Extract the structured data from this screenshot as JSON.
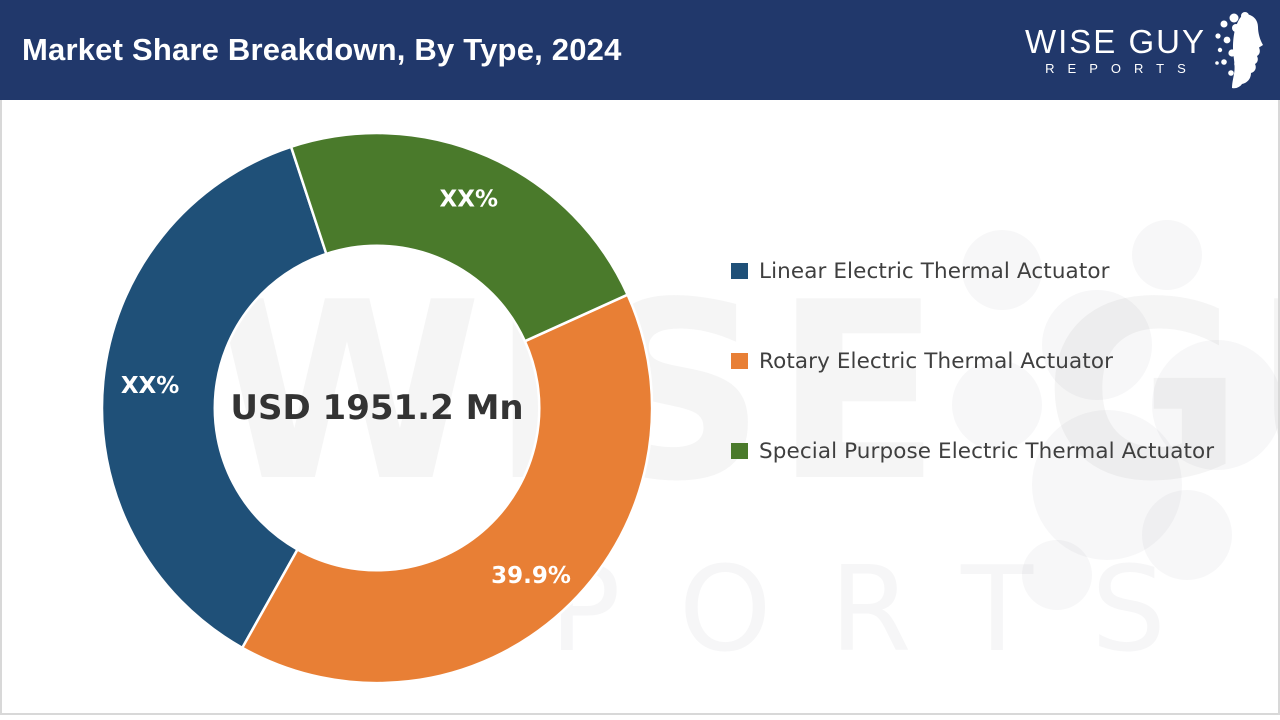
{
  "header": {
    "title": "Market Share Breakdown, By Type, 2024",
    "bg_color": "#21386B",
    "logo_line1": "WISE GUY",
    "logo_line2": "REPORTS"
  },
  "chart_data": {
    "type": "donut",
    "title": "Market Share Breakdown, By Type, 2024",
    "center_label": "USD 1951.2 Mn",
    "start_angle_deg": 108.2,
    "direction": "ccw",
    "hole_radius_ratio": 0.59,
    "slice_label_color": "#FFFFFF",
    "legend_position": "right",
    "segments": [
      {
        "label": "Linear Electric Thermal Actuator",
        "value": 36.8,
        "display": "XX%",
        "color": "#1F5078"
      },
      {
        "label": "Rotary Electric Thermal Actuator",
        "value": 39.9,
        "display": "39.9%",
        "color": "#E87F35"
      },
      {
        "label": "Special Purpose Electric Thermal Actuator",
        "value": 23.3,
        "display": "XX%",
        "color": "#4A7A2B"
      }
    ]
  },
  "watermark": {
    "line1": "WISE GUY",
    "line2": "REPORTS"
  },
  "colors": {
    "border": "#D8D8D8",
    "center_text": "#333333",
    "legend_text": "#3F3F3F"
  }
}
